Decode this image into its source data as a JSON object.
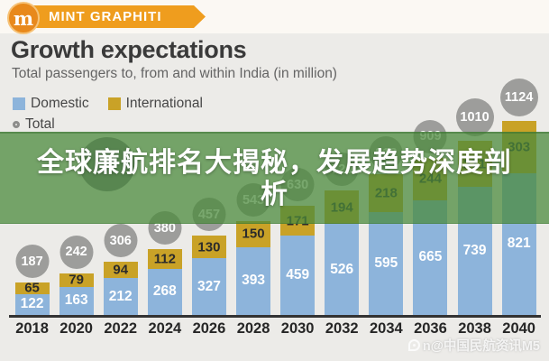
{
  "header": {
    "brand": "MINT GRAPHITI",
    "logo_letter": "m",
    "title": "Growth expectations",
    "subtitle": "Total passengers to, from and within India (in million)"
  },
  "legend": {
    "domestic_label": "Domestic",
    "international_label": "International",
    "total_label": "Total"
  },
  "overlay": {
    "line1": "全球廉航排名大揭秘，发展趋势深度剖",
    "line2": "析"
  },
  "watermark": {
    "text": "n@中国民航资讯M5"
  },
  "colors": {
    "domestic_blue": "#8db4db",
    "international_yellow": "#c9a227",
    "total_gray": "#9d9d9b",
    "banner_orange": "#ef9d1e",
    "card_gray": "#ecebe8",
    "overlay_green": "rgba(74,138,60,0.74)"
  },
  "chart_data": {
    "type": "bar",
    "stacked": true,
    "title": "Growth expectations",
    "subtitle": "Total passengers to, from and within India (in million)",
    "unit": "million passengers",
    "categories": [
      "2018",
      "2020",
      "2022",
      "2024",
      "2026",
      "2028",
      "2030",
      "2032",
      "2034",
      "2036",
      "2038",
      "2040"
    ],
    "series": [
      {
        "name": "Domestic",
        "color": "#8db4db",
        "values": [
          122,
          163,
          212,
          268,
          327,
          393,
          459,
          526,
          595,
          665,
          739,
          821
        ]
      },
      {
        "name": "International",
        "color": "#c9a227",
        "values": [
          65,
          79,
          94,
          112,
          130,
          150,
          171,
          194,
          218,
          244,
          271,
          303
        ]
      }
    ],
    "totals": [
      187,
      242,
      306,
      380,
      457,
      543,
      630,
      720,
      813,
      909,
      1010,
      1124
    ],
    "legend_position": "top-left",
    "grid": false,
    "ylim": [
      0,
      1200
    ]
  }
}
